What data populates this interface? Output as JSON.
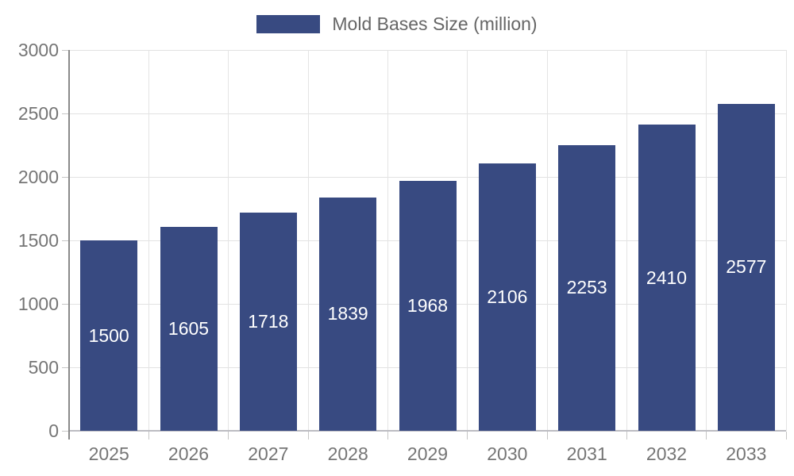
{
  "chart_data": {
    "type": "bar",
    "title": "",
    "legend": "Mold Bases Size (million)",
    "legend_position": "top",
    "categories": [
      "2025",
      "2026",
      "2027",
      "2028",
      "2029",
      "2030",
      "2031",
      "2032",
      "2033"
    ],
    "values": [
      1500,
      1605,
      1718,
      1839,
      1968,
      2106,
      2253,
      2410,
      2577
    ],
    "xlabel": "",
    "ylabel": "",
    "ylim": [
      0,
      3000
    ],
    "yticks": [
      0,
      500,
      1000,
      1500,
      2000,
      2500,
      3000
    ],
    "grid": true,
    "bar_color": "#384a81",
    "bar_label_color": "#ffffff",
    "axis_text_color": "#757575",
    "legend_text_color": "#666666"
  }
}
